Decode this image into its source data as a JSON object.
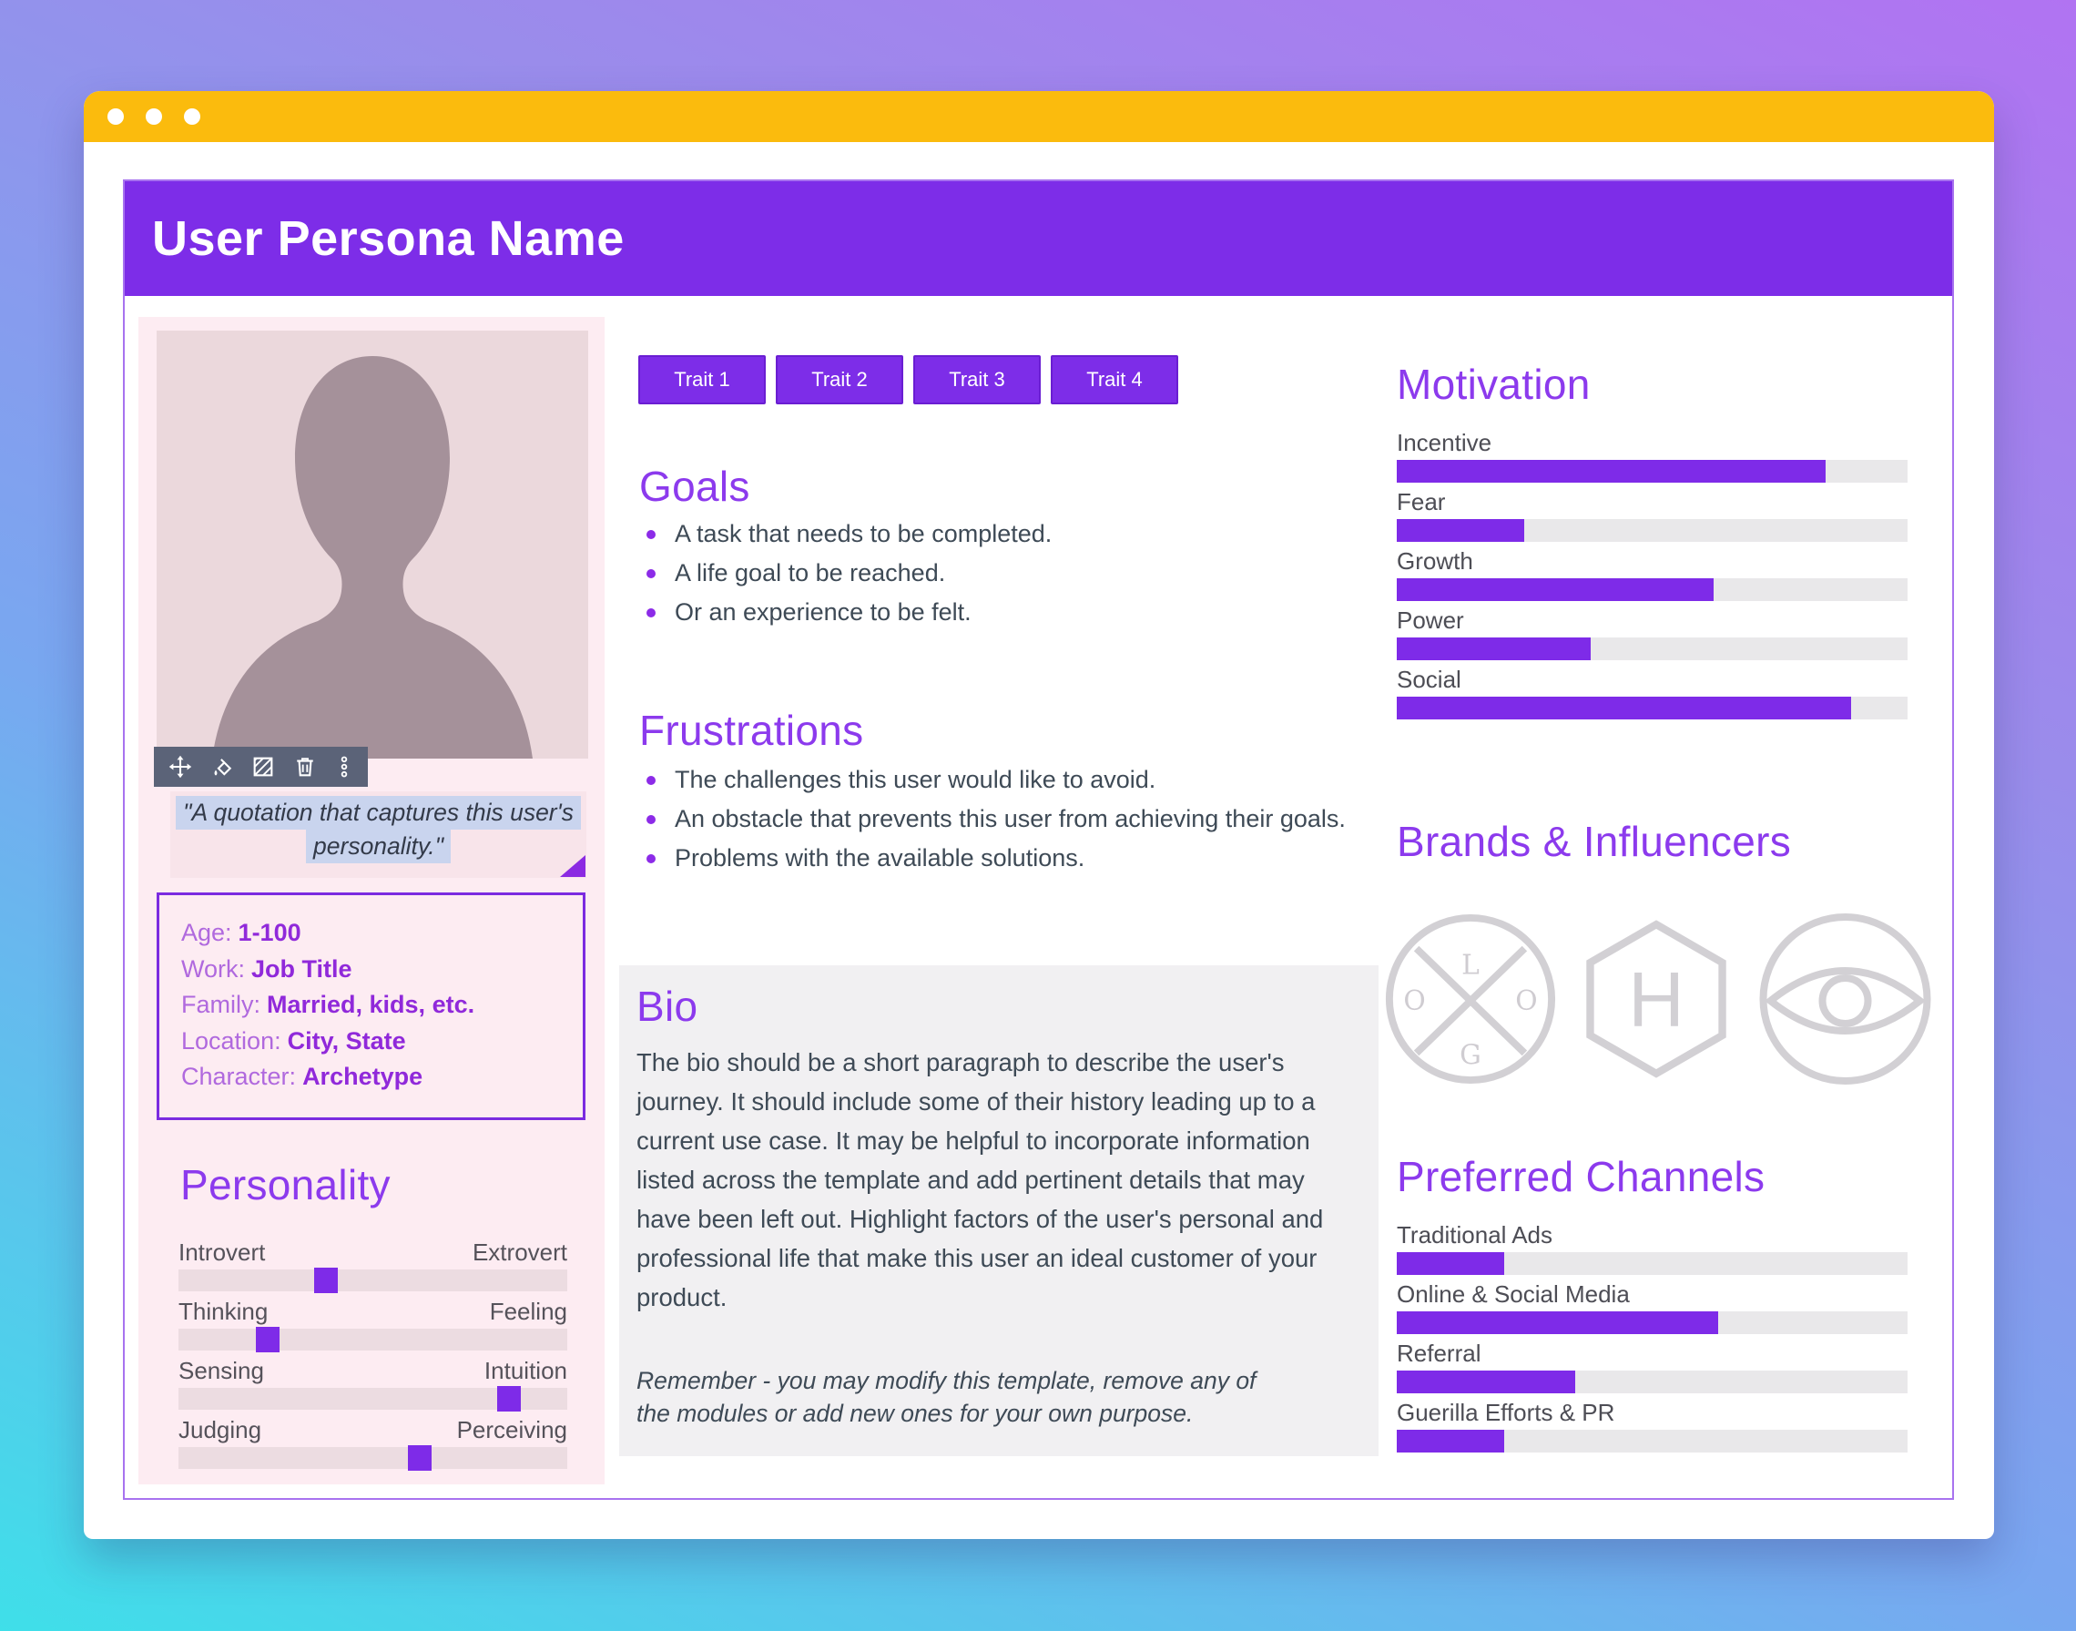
{
  "window": {
    "titlebar_color": "#fbbb0d",
    "controls": "three-dots"
  },
  "header": {
    "title": "User Persona Name",
    "background": "#7d2de8"
  },
  "accent": {
    "purple": "#7e2be8",
    "heading_purple": "#8c3aed",
    "pink_panel": "#fdecf2"
  },
  "photo": {
    "toolbar_icons": [
      "move",
      "fill-color",
      "pattern",
      "delete",
      "more-options"
    ]
  },
  "quote": {
    "line1": "\"A quotation that captures this user's",
    "line2": "personality.\""
  },
  "info": {
    "fields": [
      {
        "label": "Age:",
        "value": "1-100"
      },
      {
        "label": "Work:",
        "value": "Job Title"
      },
      {
        "label": "Family:",
        "value": "Married, kids, etc."
      },
      {
        "label": "Location:",
        "value": "City, State"
      },
      {
        "label": "Character:",
        "value": "Archetype"
      }
    ]
  },
  "personality": {
    "title": "Personality",
    "sliders": [
      {
        "left": "Introvert",
        "right": "Extrovert",
        "value_pct": 38
      },
      {
        "left": "Thinking",
        "right": "Feeling",
        "value_pct": 23
      },
      {
        "left": "Sensing",
        "right": "Intuition",
        "value_pct": 85
      },
      {
        "left": "Judging",
        "right": "Perceiving",
        "value_pct": 62
      }
    ]
  },
  "traits": {
    "buttons": [
      {
        "label": "Trait 1"
      },
      {
        "label": "Trait 2"
      },
      {
        "label": "Trait 3"
      },
      {
        "label": "Trait 4"
      }
    ]
  },
  "goals": {
    "title": "Goals",
    "items": [
      "A task that needs to be completed.",
      "A life goal to be reached.",
      "Or an experience to be felt."
    ]
  },
  "frustrations": {
    "title": "Frustrations",
    "items": [
      "The challenges this user would like to avoid.",
      "An obstacle that prevents this user from achieving their goals.",
      "Problems with the available solutions."
    ]
  },
  "bio": {
    "title": "Bio",
    "paragraph": "The bio should be a short paragraph to describe the user's journey. It should include some of their history leading up to a current use case. It may be helpful to incorporate information listed across the template and add pertinent details that may have been left out. Highlight factors of the user's personal and professional life that make this user an ideal customer of your product.",
    "note": "Remember - you may modify this template, remove any of the modules or add new ones for your own purpose."
  },
  "motivation": {
    "title": "Motivation",
    "bars": [
      {
        "label": "Incentive",
        "value_pct": 84
      },
      {
        "label": "Fear",
        "value_pct": 25
      },
      {
        "label": "Growth",
        "value_pct": 62
      },
      {
        "label": "Power",
        "value_pct": 38
      },
      {
        "label": "Social",
        "value_pct": 89
      }
    ]
  },
  "brands": {
    "title": "Brands & Influencers",
    "logos": [
      {
        "type": "circle-x-logo",
        "top": "L",
        "left": "O",
        "right": "O",
        "bottom": "G"
      },
      {
        "type": "hexagon-logo",
        "letter": "H"
      },
      {
        "type": "eye-logo"
      }
    ]
  },
  "channels": {
    "title": "Preferred Channels",
    "bars": [
      {
        "label": "Traditional Ads",
        "value_pct": 21
      },
      {
        "label": "Online & Social Media",
        "value_pct": 63
      },
      {
        "label": "Referral",
        "value_pct": 35
      },
      {
        "label": "Guerilla Efforts & PR",
        "value_pct": 21
      }
    ]
  }
}
